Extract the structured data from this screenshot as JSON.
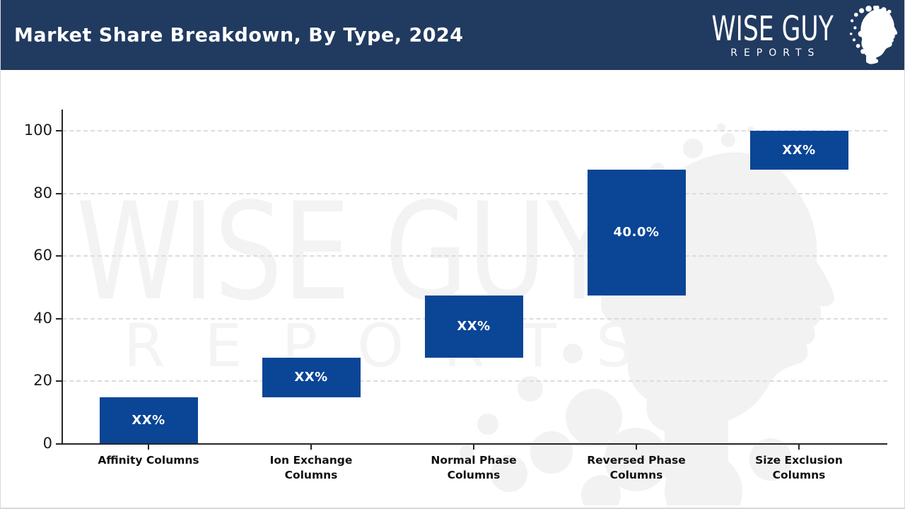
{
  "header": {
    "title": "Market Share Breakdown, By Type, 2024",
    "bg_color": "#213a60",
    "logo": {
      "wordmark": "WISE GUY",
      "subtext": "REPORTS"
    }
  },
  "watermark": {
    "wordmark": "WISE GUY",
    "subtext": "REPORTS"
  },
  "chart_data": {
    "type": "bar",
    "subtype": "waterfall-floating-bars",
    "title": "Market Share Breakdown, By Type, 2024",
    "xlabel": "",
    "ylabel": "",
    "categories": [
      "Affinity Columns",
      "Ion Exchange Columns",
      "Normal Phase Columns",
      "Reversed Phase Columns",
      "Size Exclusion Columns"
    ],
    "segments": [
      {
        "category": "Affinity Columns",
        "start": 0,
        "end": 15,
        "value": 15,
        "label": "XX%"
      },
      {
        "category": "Ion Exchange Columns",
        "start": 15,
        "end": 27.5,
        "value": 12.5,
        "label": "XX%"
      },
      {
        "category": "Normal Phase Columns",
        "start": 27.5,
        "end": 47.5,
        "value": 20,
        "label": "XX%"
      },
      {
        "category": "Reversed Phase Columns",
        "start": 47.5,
        "end": 87.5,
        "value": 40,
        "label": "40.0%"
      },
      {
        "category": "Size Exclusion Columns",
        "start": 87.5,
        "end": 100,
        "value": 12.5,
        "label": "XX%"
      }
    ],
    "ylim": [
      0,
      100
    ],
    "yticks": [
      0,
      20,
      40,
      60,
      80,
      100
    ],
    "grid": "horizontal-dashed",
    "legend": "none",
    "bar_color": "#0a4596",
    "bar_label_color": "#ffffff",
    "axis_color": "#262626",
    "grid_color": "#dcdcdc"
  }
}
